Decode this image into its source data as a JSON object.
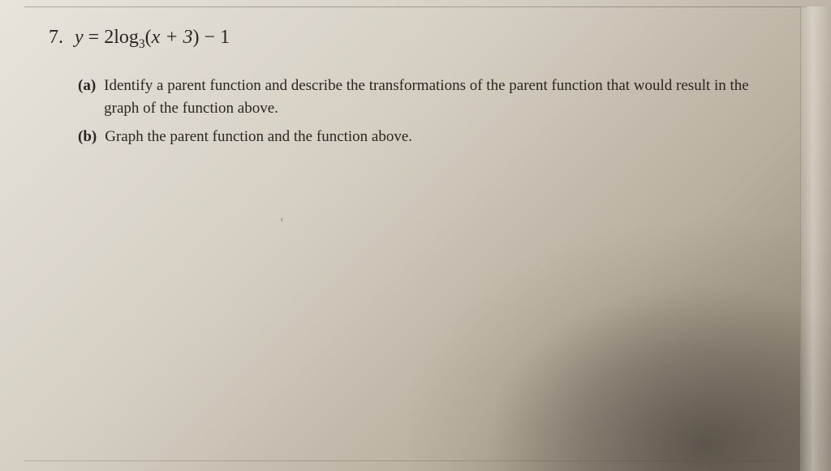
{
  "page": {
    "background_gradient": [
      "#e8e4dc",
      "#d4cec2",
      "#b8b0a0",
      "#8a8070"
    ],
    "text_color": "#2a2520",
    "divider_color": "rgba(80, 70, 60, 0.4)"
  },
  "question": {
    "number": "7.",
    "equation_raw": "y = 2log_3(x + 3) - 1",
    "equation_parts": {
      "lhs": "y",
      "equals": " = ",
      "coeff": "2",
      "func": "log",
      "base": "3",
      "arg_open": "(",
      "arg": "x + 3",
      "arg_close": ")",
      "tail": " − 1"
    },
    "fontsize": 24
  },
  "parts": [
    {
      "label": "(a)",
      "text": "Identify a parent function and describe the transformations of the parent function that would result in the graph of the function above."
    },
    {
      "label": "(b)",
      "text": "Graph the parent function and the function above."
    }
  ],
  "typography": {
    "body_fontsize": 19,
    "line_height": 1.5,
    "font_family": "Georgia, Times New Roman, serif"
  },
  "mark": "‹"
}
